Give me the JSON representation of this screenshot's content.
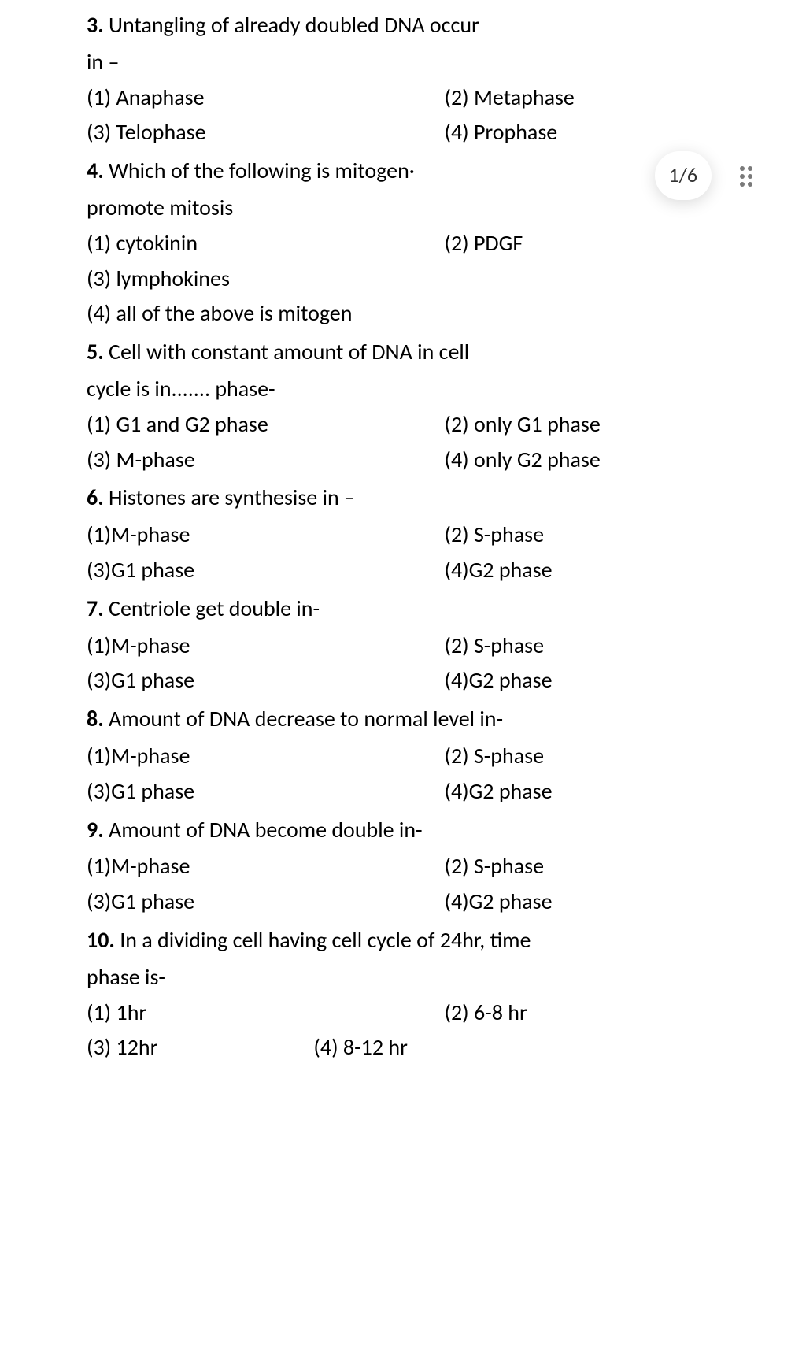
{
  "page_indicator": "1/6",
  "questions": {
    "q3": {
      "num": "3.",
      "text": "Untangling of already doubled DNA occur",
      "continuation": "in –",
      "opt1": "(1) Anaphase",
      "opt2": "(2) Metaphase",
      "opt3": "(3) Telophase",
      "opt4": "(4) Prophase"
    },
    "q4": {
      "num": "4.",
      "text": "Which of the following is mitogen·",
      "continuation": "promote mitosis",
      "opt1": "(1) cytokinin",
      "opt2": "(2) PDGF",
      "opt3": "(3) lymphokines",
      "opt4": "(4) all of the above is mitogen"
    },
    "q5": {
      "num": "5.",
      "text_part1": "Cell with constant amount of DNA in cell",
      "continuation": "cycle is in....... phase-",
      "opt1": "(1) G1 and G2 phase",
      "opt2": "(2) only G1 phase",
      "opt3": "(3) M-phase",
      "opt4": "(4) only G2 phase"
    },
    "q6": {
      "num": "6.",
      "text": "Histones are synthesise in –",
      "opt1": "(1)M-phase",
      "opt2": "(2) S-phase",
      "opt3": "(3)G1 phase",
      "opt4": "(4)G2 phase"
    },
    "q7": {
      "num": "7.",
      "text": "Centriole get double in-",
      "opt1": "(1)M-phase",
      "opt2": "(2) S-phase",
      "opt3": "(3)G1 phase",
      "opt4": "(4)G2 phase"
    },
    "q8": {
      "num": "8.",
      "text": "Amount of DNA decrease to normal level in-",
      "opt1": "(1)M-phase",
      "opt2": "(2) S-phase",
      "opt3": "(3)G1 phase",
      "opt4": "(4)G2 phase"
    },
    "q9": {
      "num": "9.",
      "text": "Amount of DNA become double in-",
      "opt1": "(1)M-phase",
      "opt2": "(2) S-phase",
      "opt3": "(3)G1 phase",
      "opt4": "(4)G2 phase"
    },
    "q10": {
      "num": "10.",
      "text": "In a dividing cell having cell cycle of 24hr, time",
      "continuation": "phase is-",
      "opt1": "(1) 1hr",
      "opt2": "(2) 6-8 hr",
      "opt3": "(3) 12hr",
      "opt4": "(4) 8-12 hr"
    }
  }
}
